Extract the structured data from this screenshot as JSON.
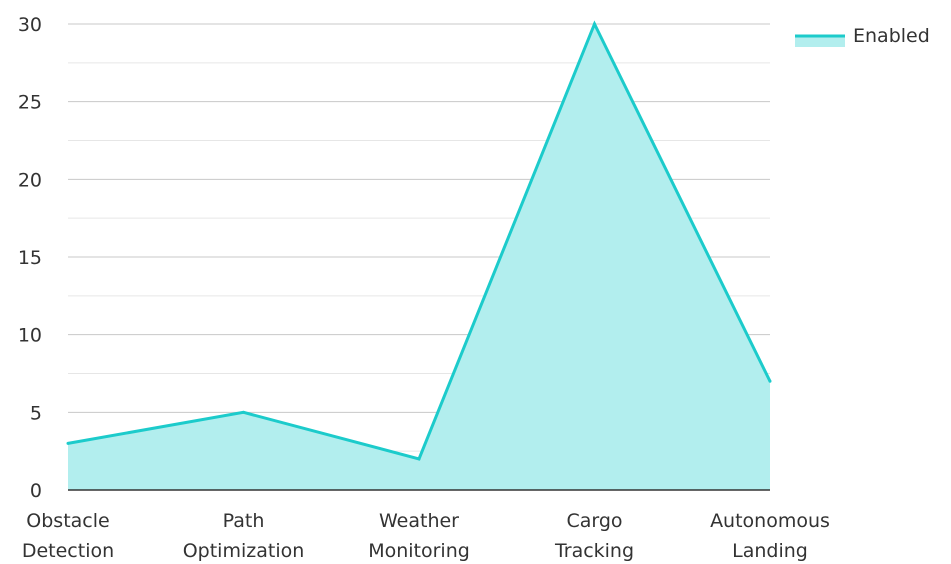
{
  "chart_data": {
    "type": "area",
    "categories": [
      "Obstacle Detection",
      "Path Optimization",
      "Weather Monitoring",
      "Cargo Tracking",
      "Autonomous Landing"
    ],
    "category_lines": [
      [
        "Obstacle",
        "Detection"
      ],
      [
        "Path",
        "Optimization"
      ],
      [
        "Weather",
        "Monitoring"
      ],
      [
        "Cargo",
        "Tracking"
      ],
      [
        "Autonomous",
        "Landing"
      ]
    ],
    "series": [
      {
        "name": "Enabled",
        "values": [
          3,
          5,
          2,
          30,
          7
        ],
        "line_color": "#1ccbcb",
        "fill_color": "#b2eeee"
      }
    ],
    "ylim": [
      0,
      30
    ],
    "y_ticks": [
      "0",
      "5",
      "10",
      "15",
      "20",
      "25",
      "30"
    ],
    "grid": true,
    "legend_position": "top-right"
  }
}
